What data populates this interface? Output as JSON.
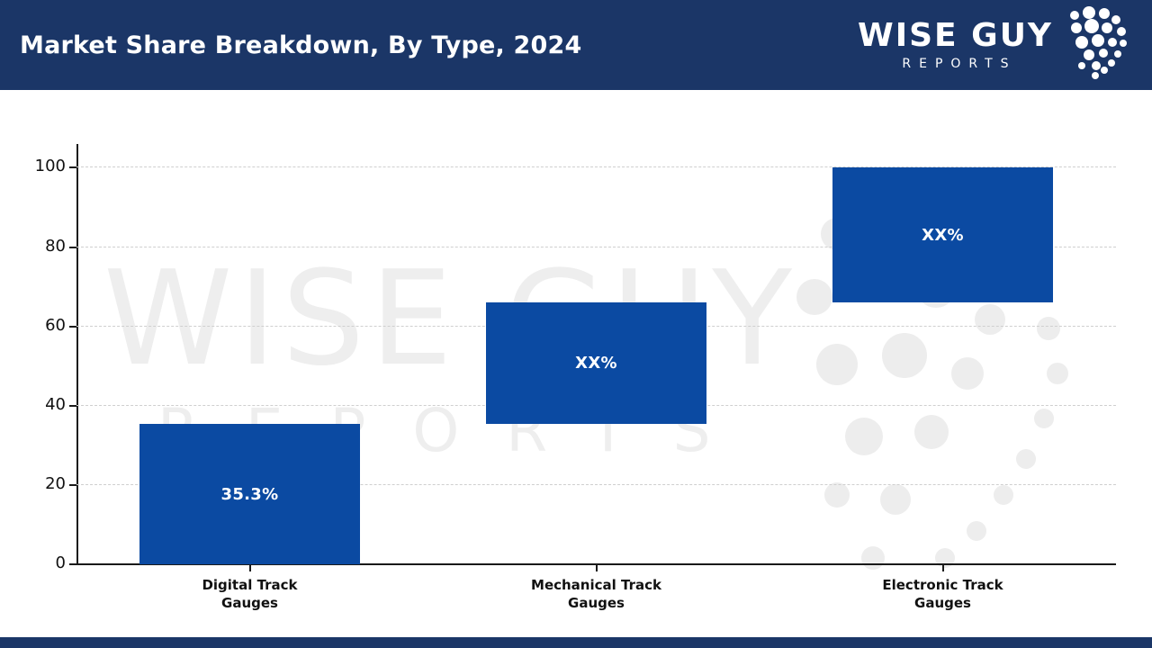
{
  "header": {
    "title": "Market Share Breakdown, By Type, 2024",
    "logo": {
      "line1": "WISE GUY",
      "line2": "REPORTS"
    }
  },
  "watermark": {
    "line1": "WISE GUY",
    "line2": "REPORTS"
  },
  "colors": {
    "header_navy": "#1b3667",
    "bar_blue": "#0b4aa2",
    "bar_label_white": "#ffffff",
    "watermark_gray": "#eeeeee"
  },
  "chart_data": {
    "type": "bar",
    "variant": "waterfall",
    "title": "Market Share Breakdown, By Type, 2024",
    "categories": [
      "Digital Track Gauges",
      "Mechanical Track Gauges",
      "Electronic Track Gauges"
    ],
    "category_lines": [
      [
        "Digital Track",
        "Gauges"
      ],
      [
        "Mechanical Track",
        "Gauges"
      ],
      [
        "Electronic Track",
        "Gauges"
      ]
    ],
    "series": [
      {
        "name": "Market Share",
        "segments": [
          {
            "category": "Digital Track Gauges",
            "start": 0,
            "end": 35.3,
            "label": "35.3%"
          },
          {
            "category": "Mechanical Track Gauges",
            "start": 35.3,
            "end": 66,
            "label": "XX%"
          },
          {
            "category": "Electronic Track Gauges",
            "start": 66,
            "end": 100,
            "label": "XX%"
          }
        ]
      }
    ],
    "ylim": [
      0,
      106
    ],
    "yticks": [
      0,
      20,
      40,
      60,
      80,
      100
    ],
    "grid": {
      "horizontal": true,
      "style": "dashed"
    },
    "legend": "none",
    "bar_color": "#0b4aa2",
    "bar_label_color": "#ffffff"
  }
}
